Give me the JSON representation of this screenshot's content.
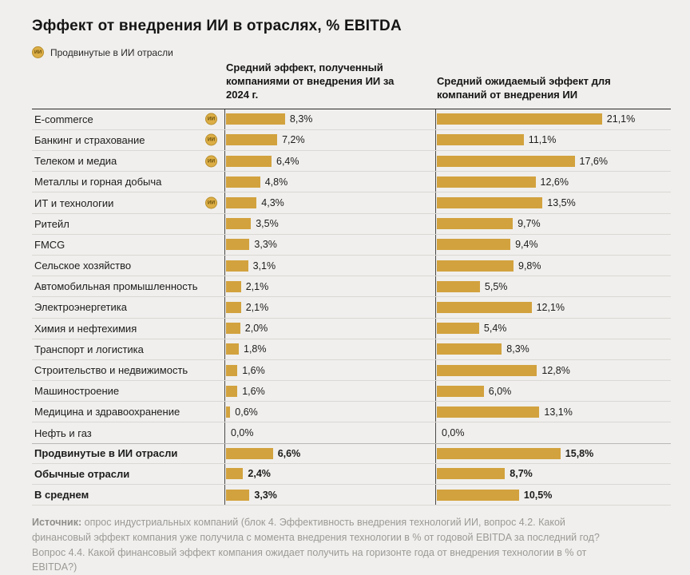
{
  "title": "Эффект от внедрения ИИ в отраслях, % EBITDA",
  "legend": {
    "badge_text": "ИИ",
    "label": "Продвинутые в ИИ отрасли"
  },
  "accent_color": "#d2a23e",
  "chart_data": {
    "type": "bar",
    "title": "Эффект от внедрения ИИ в отраслях, % EBITDA",
    "value_suffix": "%",
    "decimal_separator": ",",
    "categories": [
      "E-commerce",
      "Банкинг и страхование",
      "Телеком и медиа",
      "Металлы и горная добыча",
      "ИТ и технологии",
      "Ритейл",
      "FMCG",
      "Сельское хозяйство",
      "Автомобильная промышленность",
      "Электроэнергетика",
      "Химия и нефтехимия",
      "Транспорт и логистика",
      "Строительство и недвижимость",
      "Машиностроение",
      "Медицина и здравоохранение",
      "Нефть и газ",
      "Продвинутые в ИИ отрасли",
      "Обычные отрасли",
      "В среднем"
    ],
    "series": [
      {
        "name": "Средний эффект, полученный компаниями от внедрения ИИ за 2024 г.",
        "values": [
          8.3,
          7.2,
          6.4,
          4.8,
          4.3,
          3.5,
          3.3,
          3.1,
          2.1,
          2.1,
          2.0,
          1.8,
          1.6,
          1.6,
          0.6,
          0.0,
          6.6,
          2.4,
          3.3
        ]
      },
      {
        "name": "Средний ожидаемый эффект для компаний от внедрения ИИ",
        "values": [
          21.1,
          11.1,
          17.6,
          12.6,
          13.5,
          9.7,
          9.4,
          9.8,
          5.5,
          12.1,
          5.4,
          8.3,
          12.8,
          6.0,
          13.1,
          0.0,
          15.8,
          8.7,
          10.5
        ]
      }
    ],
    "advanced_ai_rows": [
      0,
      1,
      2,
      4
    ],
    "bold_rows": [
      16,
      17,
      18
    ],
    "grid": false,
    "legend_position": "top-left"
  },
  "source": {
    "prefix": "Источник:",
    "text": "опрос индустриальных компаний (блок 4. Эффективность внедрения технологий ИИ, вопрос 4.2. Какой финансовый эффект компания уже получила с момента внедрения технологии в % от годовой EBITDA за последний год? Вопрос 4.4. Какой финансовый эффект компания ожидает получить на горизонте года от внедрения технологии в % от EBITDA?)"
  }
}
